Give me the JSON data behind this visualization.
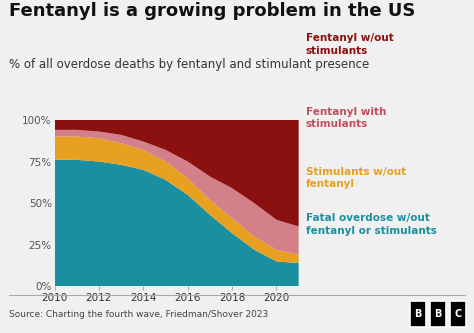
{
  "title": "Fentanyl is a growing problem in the US",
  "subtitle": "% of all overdose deaths by fentanyl and stimulant presence",
  "source": "Source: Charting the fourth wave, Friedman/Shover 2023",
  "years": [
    2010,
    2011,
    2012,
    2013,
    2014,
    2015,
    2016,
    2017,
    2018,
    2019,
    2020,
    2021
  ],
  "fatal_no_fentanyl_no_stimulants": [
    76,
    76,
    75,
    73,
    70,
    64,
    55,
    43,
    32,
    22,
    15,
    14
  ],
  "stimulants_no_fentanyl": [
    14,
    14,
    14,
    13,
    12,
    11,
    10,
    9,
    9,
    8,
    7,
    5
  ],
  "fentanyl_with_stimulants": [
    4,
    4,
    4,
    5,
    5,
    7,
    10,
    14,
    18,
    20,
    18,
    17
  ],
  "fentanyl_no_stimulants": [
    6,
    6,
    7,
    9,
    13,
    18,
    25,
    34,
    41,
    50,
    60,
    64
  ],
  "color_fatal": "#1a8fa0",
  "color_stimulants": "#e8a020",
  "color_fentanyl_stim": "#d4808a",
  "color_fentanyl_no_stim": "#8b1010",
  "background_color": "#f0f0f0",
  "title_fontsize": 13,
  "subtitle_fontsize": 8.5,
  "label_fontsize": 7.5,
  "source_fontsize": 6.5,
  "bbc_fontsize": 7
}
